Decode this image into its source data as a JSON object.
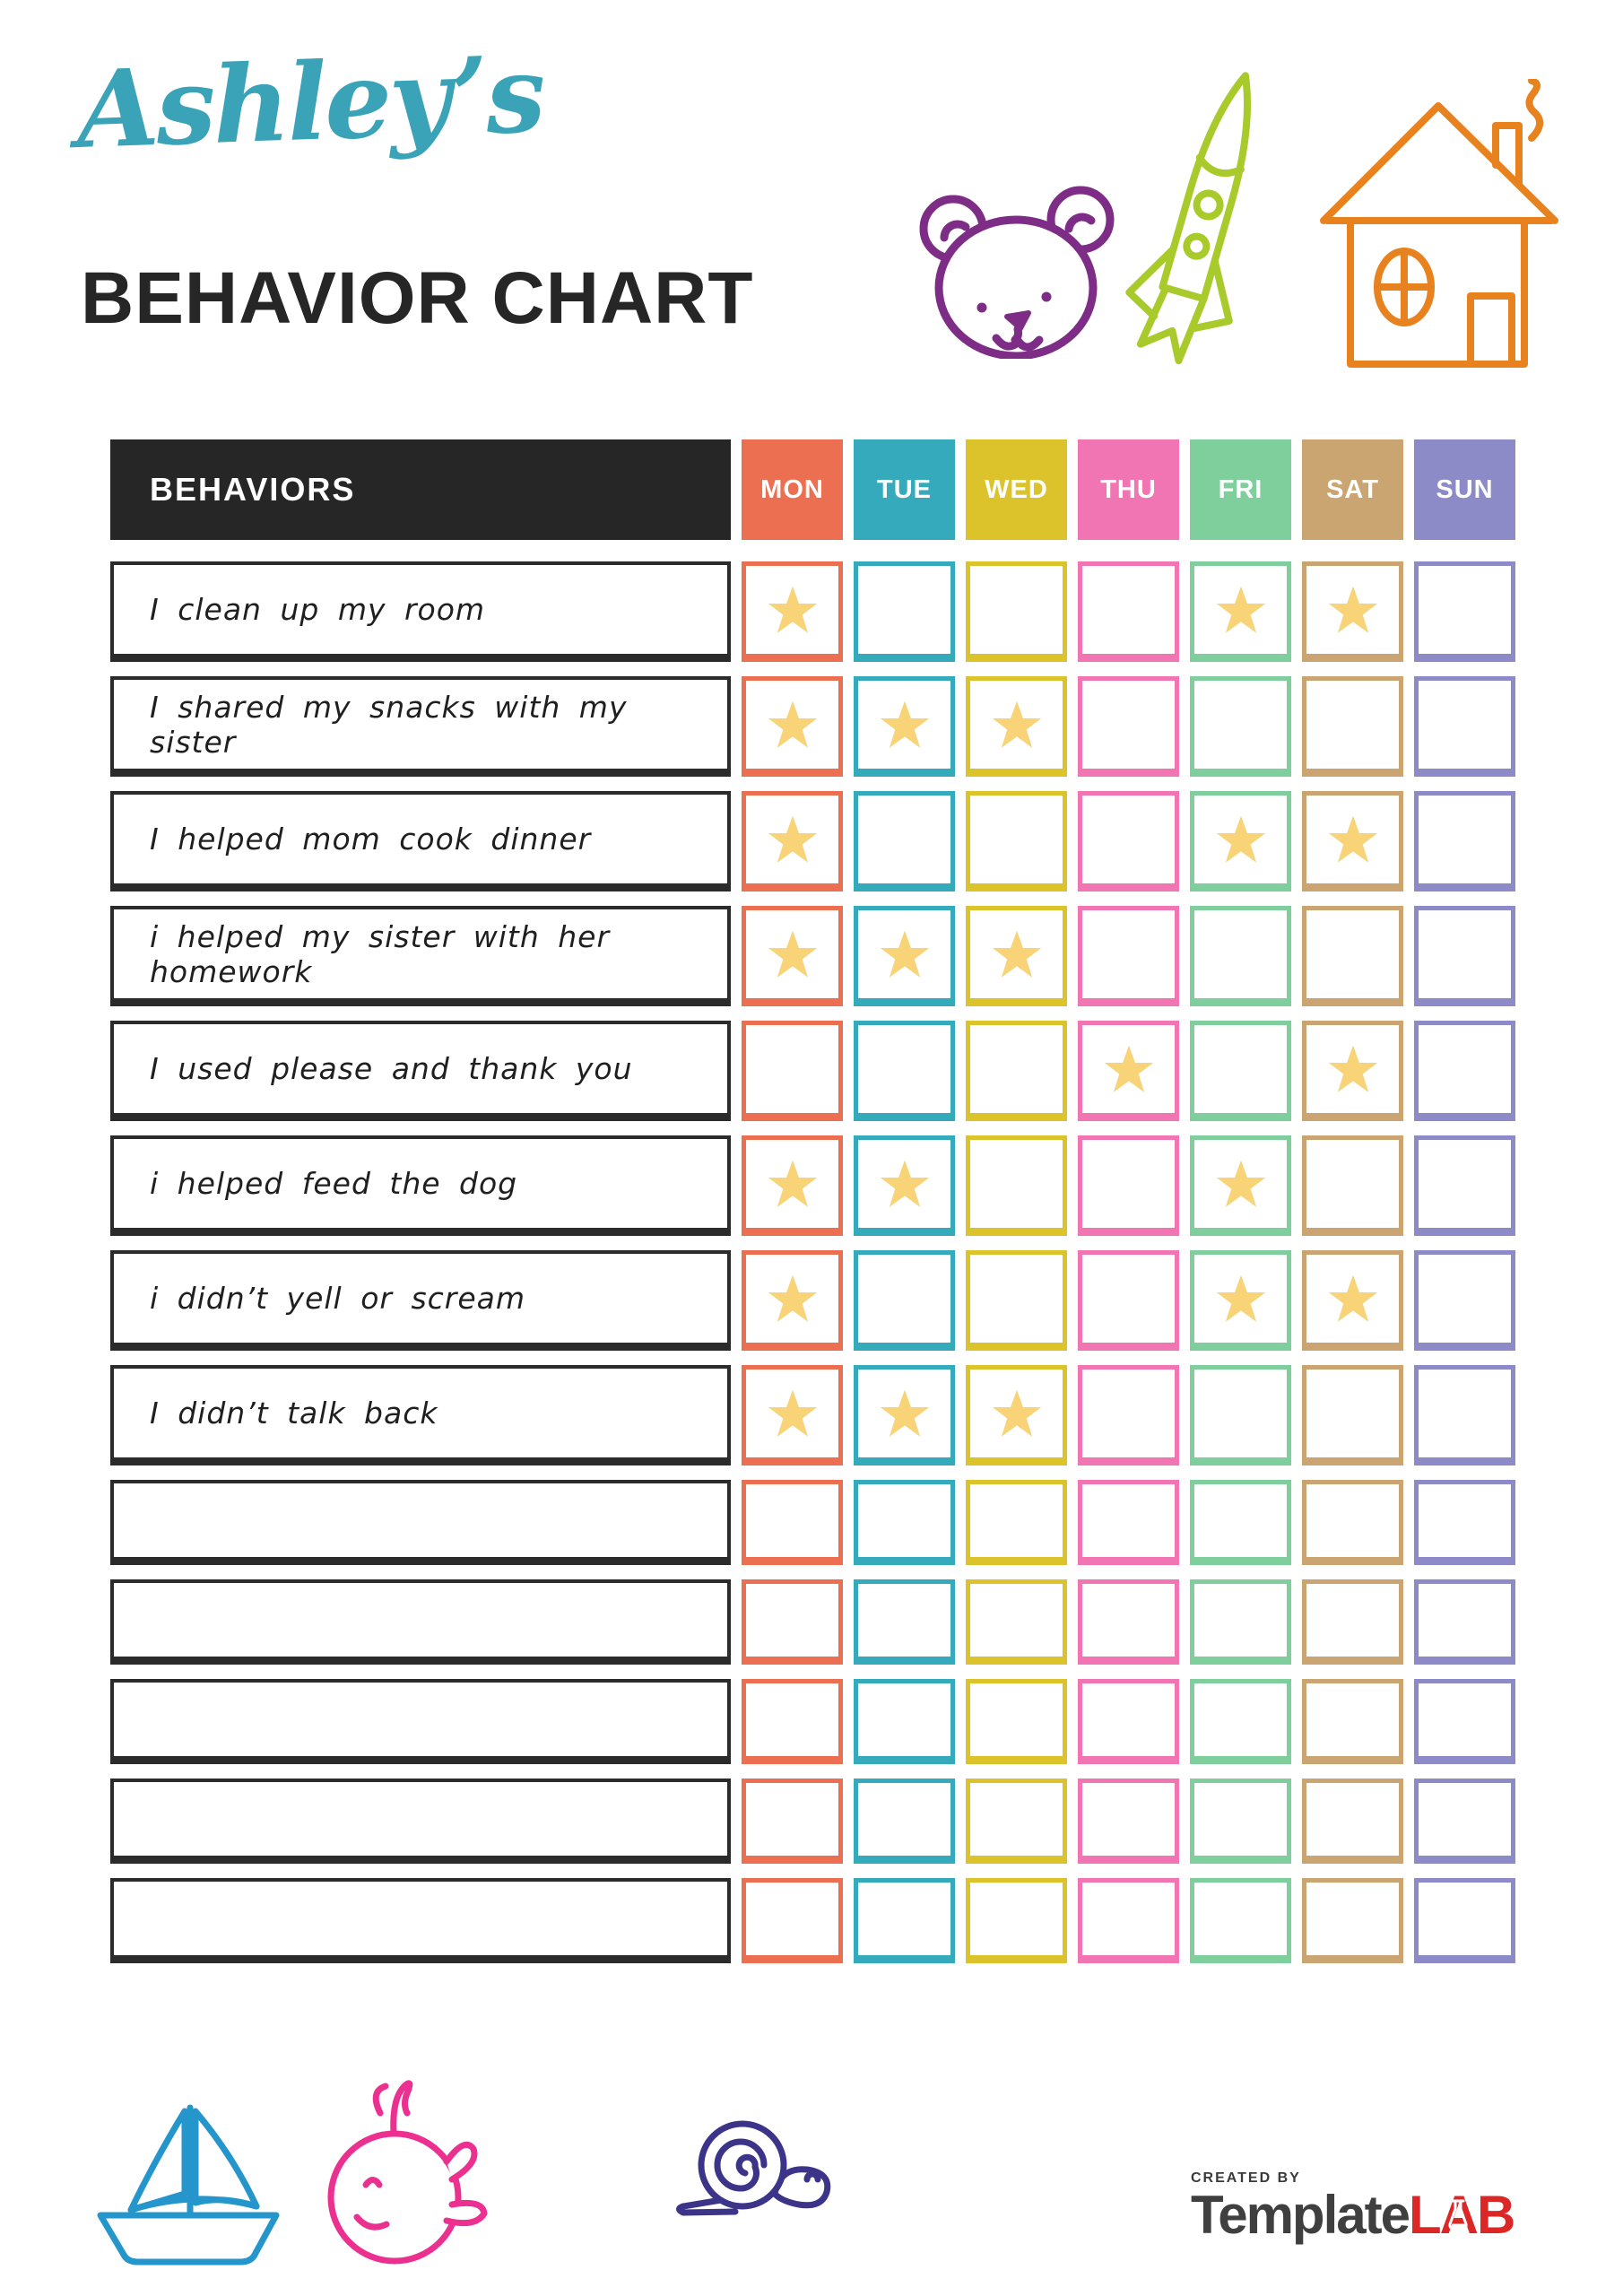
{
  "header": {
    "name_script": "Ashley’s",
    "title": "BEHAVIOR CHART"
  },
  "colors": {
    "title_script": "#3aa3b8",
    "heading": "#262626",
    "header_bg": "#262626",
    "star": "#f8d377",
    "bear": "#7e2d87",
    "rocket": "#a8ca2b",
    "house": "#e8821e",
    "sailboat": "#2496cc",
    "whale": "#eb3090",
    "snail": "#3c3488"
  },
  "icons": {
    "top_doodles": [
      "bear-icon",
      "rocket-icon",
      "house-icon"
    ],
    "bottom_doodles": [
      "sailboat-icon",
      "whale-icon",
      "snail-icon"
    ],
    "star": "star-icon",
    "brand": "flask-icon"
  },
  "table": {
    "behaviors_header": "BEHAVIORS",
    "days": [
      {
        "label": "MON",
        "color": "#ed6f52"
      },
      {
        "label": "TUE",
        "color": "#36aabd"
      },
      {
        "label": "WED",
        "color": "#ddc32b"
      },
      {
        "label": "THU",
        "color": "#f175b2"
      },
      {
        "label": "FRI",
        "color": "#7fcf9c"
      },
      {
        "label": "SAT",
        "color": "#cba571"
      },
      {
        "label": "SUN",
        "color": "#8d8bc7"
      }
    ],
    "rows": [
      {
        "behavior": "I clean up my room",
        "stars": [
          1,
          0,
          0,
          0,
          1,
          1,
          0
        ]
      },
      {
        "behavior": "I shared my snacks with my sister",
        "stars": [
          1,
          1,
          1,
          0,
          0,
          0,
          0
        ]
      },
      {
        "behavior": "I helped mom cook dinner",
        "stars": [
          1,
          0,
          0,
          0,
          1,
          1,
          0
        ]
      },
      {
        "behavior": "i helped my sister with her homework",
        "stars": [
          1,
          1,
          1,
          0,
          0,
          0,
          0
        ]
      },
      {
        "behavior": "I used please and thank you",
        "stars": [
          0,
          0,
          0,
          1,
          0,
          1,
          0
        ]
      },
      {
        "behavior": "i helped feed the dog",
        "stars": [
          1,
          1,
          0,
          0,
          1,
          0,
          0
        ]
      },
      {
        "behavior": "i didn’t yell or scream",
        "stars": [
          1,
          0,
          0,
          0,
          1,
          1,
          0
        ]
      },
      {
        "behavior": "I didn’t talk back",
        "stars": [
          1,
          1,
          1,
          0,
          0,
          0,
          0
        ]
      },
      {
        "behavior": "",
        "stars": [
          0,
          0,
          0,
          0,
          0,
          0,
          0
        ]
      },
      {
        "behavior": "",
        "stars": [
          0,
          0,
          0,
          0,
          0,
          0,
          0
        ]
      },
      {
        "behavior": "",
        "stars": [
          0,
          0,
          0,
          0,
          0,
          0,
          0
        ]
      },
      {
        "behavior": "",
        "stars": [
          0,
          0,
          0,
          0,
          0,
          0,
          0
        ]
      },
      {
        "behavior": "",
        "stars": [
          0,
          0,
          0,
          0,
          0,
          0,
          0
        ]
      }
    ]
  },
  "footer": {
    "created_by": "CREATED BY",
    "brand_gray": "Template",
    "brand_red": "LAB"
  }
}
